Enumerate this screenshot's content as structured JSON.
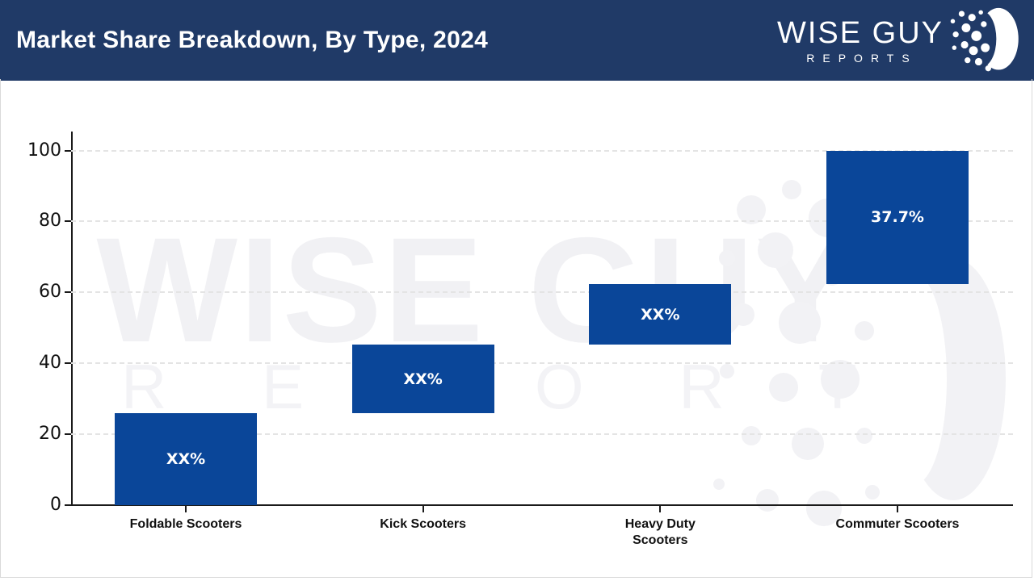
{
  "header": {
    "title": "Market Share Breakdown, By Type, 2024"
  },
  "logo": {
    "line1": "WISE GUY",
    "line2": "REPORTS"
  },
  "watermark": {
    "line1": "WISE GUY",
    "line2": "R E P O R T S"
  },
  "chart_data": {
    "type": "bar",
    "subtype": "waterfall-floating-segments",
    "title": "Market Share Breakdown, By Type, 2024",
    "categories": [
      "Foldable Scooters",
      "Kick Scooters",
      "Heavy Duty\nScooters",
      "Commuter Scooters"
    ],
    "segments": [
      {
        "category": "Foldable Scooters",
        "start": 0,
        "end": 25.9,
        "label": "XX%"
      },
      {
        "category": "Kick Scooters",
        "start": 25.9,
        "end": 45.2,
        "label": "XX%"
      },
      {
        "category": "Heavy Duty Scooters",
        "start": 45.2,
        "end": 62.3,
        "label": "XX%"
      },
      {
        "category": "Commuter Scooters",
        "start": 62.3,
        "end": 100,
        "label": "37.7%"
      }
    ],
    "ylim": [
      0,
      100
    ],
    "yticks": [
      0,
      20,
      40,
      60,
      80,
      100
    ],
    "xlabel": "",
    "ylabel": "",
    "grid": "horizontal-dashed",
    "legend": "none",
    "bar_color": "#0a4699",
    "bar_label_color": "#ffffff"
  },
  "colors": {
    "header_bg": "#203a67",
    "bar": "#0a4699",
    "grid": "#e4e4e4",
    "axis": "#1a1a1a",
    "watermark": "#f1f1f4",
    "frame_border": "#d9d9d9"
  }
}
